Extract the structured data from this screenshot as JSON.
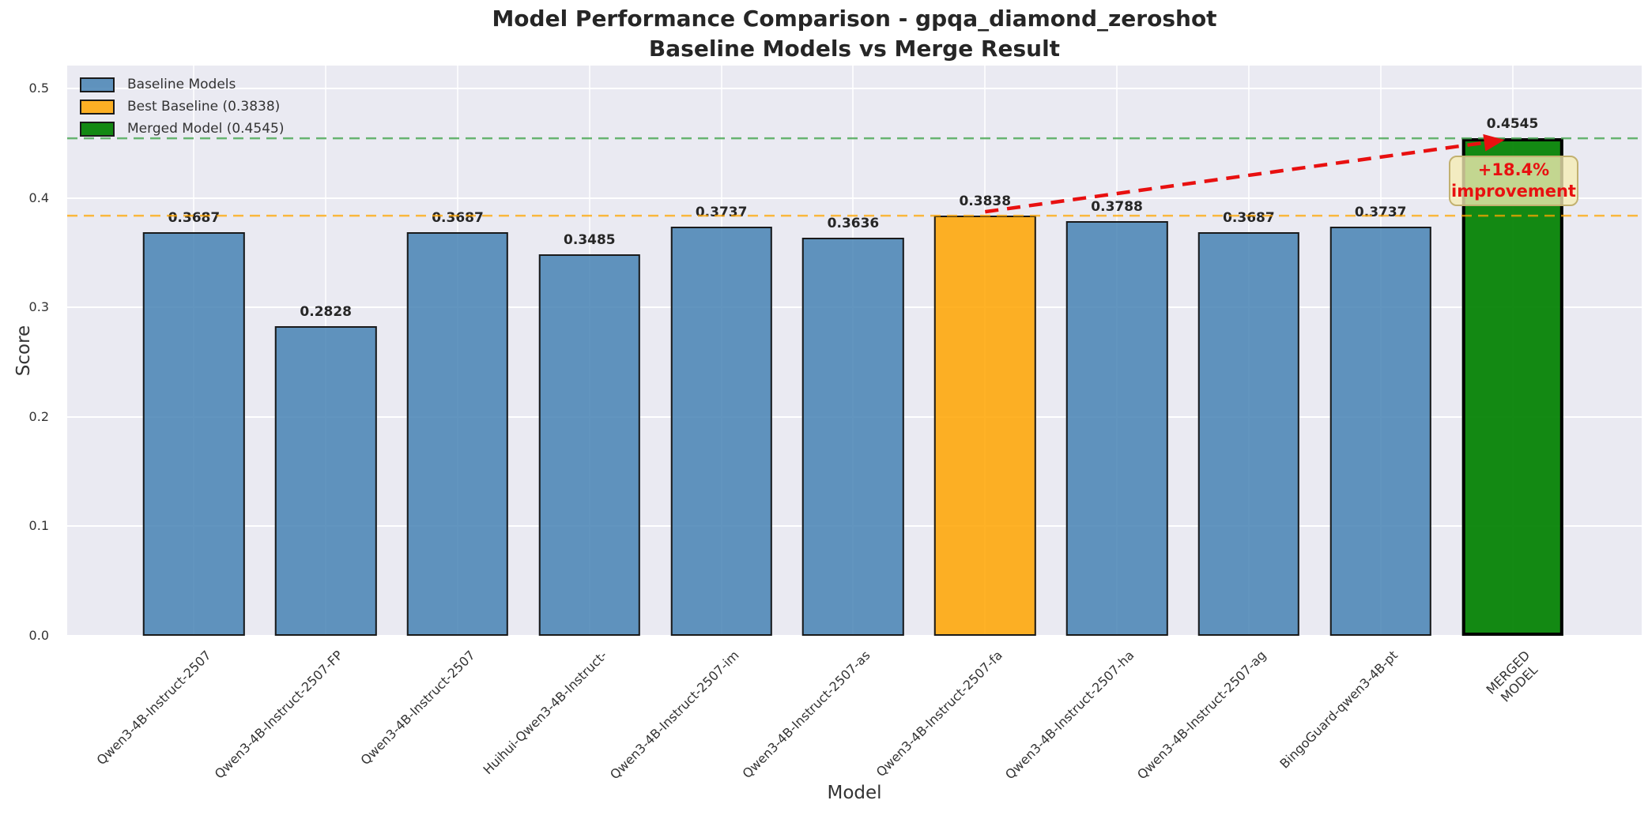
{
  "chart_data": {
    "type": "bar",
    "title": "Model Performance Comparison - gpqa_diamond_zeroshot",
    "subtitle": "Baseline Models vs Merge Result",
    "xlabel": "Model",
    "ylabel": "Score",
    "ylim": [
      0,
      0.521
    ],
    "grid": true,
    "yticks": [
      0.0,
      0.1,
      0.2,
      0.3,
      0.4,
      0.5
    ],
    "ytick_labels": [
      "0.0",
      "0.1",
      "0.2",
      "0.3",
      "0.4",
      "0.5"
    ],
    "categories": [
      "Qwen3-4B-Instruct-2507",
      "Qwen3-4B-Instruct-2507-FP",
      "Qwen3-4B-Instruct-2507",
      "Huihui-Qwen3-4B-Instruct-",
      "Qwen3-4B-Instruct-2507-im",
      "Qwen3-4B-Instruct-2507-as",
      "Qwen3-4B-Instruct-2507-fa",
      "Qwen3-4B-Instruct-2507-ha",
      "Qwen3-4B-Instruct-2507-ag",
      "BingoGuard-qwen3-4B-pt",
      "MERGED\nMODEL"
    ],
    "values": [
      0.3687,
      0.2828,
      0.3687,
      0.3485,
      0.3737,
      0.3636,
      0.3838,
      0.3788,
      0.3687,
      0.3737,
      0.4545
    ],
    "value_labels": [
      "0.3687",
      "0.2828",
      "0.3687",
      "0.3485",
      "0.3737",
      "0.3636",
      "0.3838",
      "0.3788",
      "0.3687",
      "0.3737",
      "0.4545"
    ],
    "bar_roles": [
      "baseline",
      "baseline",
      "baseline",
      "baseline",
      "baseline",
      "baseline",
      "best",
      "baseline",
      "baseline",
      "baseline",
      "merged"
    ],
    "legend": {
      "position": "upper-left",
      "entries": [
        {
          "label": "Baseline Models",
          "role": "baseline"
        },
        {
          "label": "Best Baseline (0.3838)",
          "role": "best"
        },
        {
          "label": "Merged Model (0.4545)",
          "role": "merged"
        }
      ]
    },
    "reference_lines": [
      {
        "value": 0.3838,
        "color": "rgba(255,165,0,0.75)",
        "role": "best-baseline-line"
      },
      {
        "value": 0.4545,
        "color": "rgba(80,170,90,0.85)",
        "role": "merged-line"
      }
    ],
    "annotation": {
      "line1": "+18.4%",
      "line2": "improvement",
      "from_index": 6,
      "from_value": 0.3838,
      "to_index": 10,
      "to_value": 0.4545
    }
  },
  "colors": {
    "axes_bg": "#eaeaf2",
    "grid": "#ffffff",
    "baseline": "rgba(70,130,180,0.85)",
    "best": "rgba(255,165,0,0.85)",
    "merged": "rgba(0,128,0,0.92)",
    "bar_edge": "#1a1a1a",
    "arrow": "#e81010",
    "annotation_text": "#e81010",
    "annotation_bg": "rgba(245,236,180,0.78)",
    "annotation_border": "#c2b170"
  }
}
